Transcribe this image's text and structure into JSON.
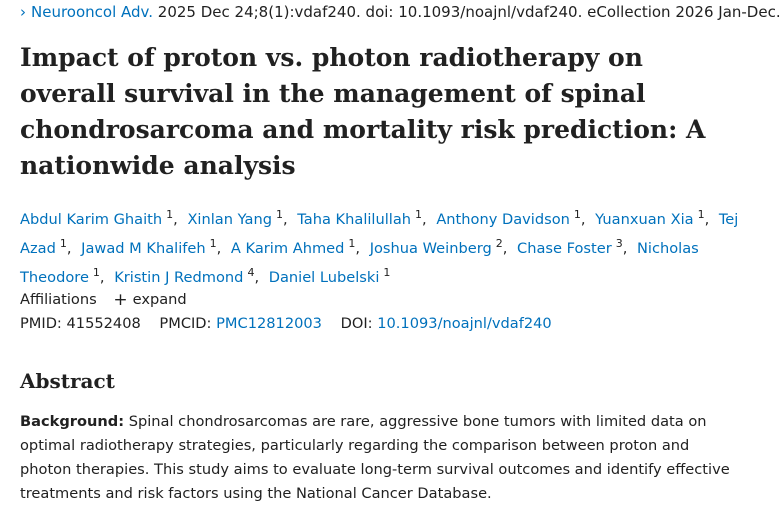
{
  "citation": {
    "chevron": "›",
    "journal": "Neurooncol Adv.",
    "details": "2025 Dec 24;8(1):vdaf240. doi: 10.1093/noajnl/vdaf240. eCollection 2026 Jan-Dec."
  },
  "title": "Impact of proton vs. photon radiotherapy on overall survival in the management of spinal chondrosarcoma and mortality risk prediction: A nationwide analysis",
  "authors": [
    {
      "name": "Abdul Karim Ghaith",
      "sup": "1"
    },
    {
      "name": "Xinlan Yang",
      "sup": "1"
    },
    {
      "name": "Taha Khalilullah",
      "sup": "1"
    },
    {
      "name": "Anthony Davidson",
      "sup": "1"
    },
    {
      "name": "Yuanxuan Xia",
      "sup": "1"
    },
    {
      "name": "Tej Azad",
      "sup": "1"
    },
    {
      "name": "Jawad M Khalifeh",
      "sup": "1"
    },
    {
      "name": "A Karim Ahmed",
      "sup": "1"
    },
    {
      "name": "Joshua Weinberg",
      "sup": "2"
    },
    {
      "name": "Chase Foster",
      "sup": "3"
    },
    {
      "name": "Nicholas Theodore",
      "sup": "1"
    },
    {
      "name": "Kristin J Redmond",
      "sup": "4"
    },
    {
      "name": "Daniel Lubelski",
      "sup": "1"
    }
  ],
  "affiliations": {
    "label": "Affiliations",
    "expand_label": "expand",
    "expand_icon": "+"
  },
  "ids": {
    "pmid_label": "PMID:",
    "pmid": "41552408",
    "pmcid_label": "PMCID:",
    "pmcid": "PMC12812003",
    "doi_label": "DOI:",
    "doi": "10.1093/noajnl/vdaf240"
  },
  "abstract": {
    "heading": "Abstract",
    "background_label": "Background:",
    "background_text": "Spinal chondrosarcomas are rare, aggressive bone tumors with limited data on optimal radiotherapy strategies, particularly regarding the comparison between proton and photon therapies. This study aims to evaluate long-term survival outcomes and identify effective treatments and risk factors using the National Cancer Database."
  },
  "colors": {
    "link": "#0071bc",
    "text": "#212121",
    "background": "#ffffff"
  }
}
